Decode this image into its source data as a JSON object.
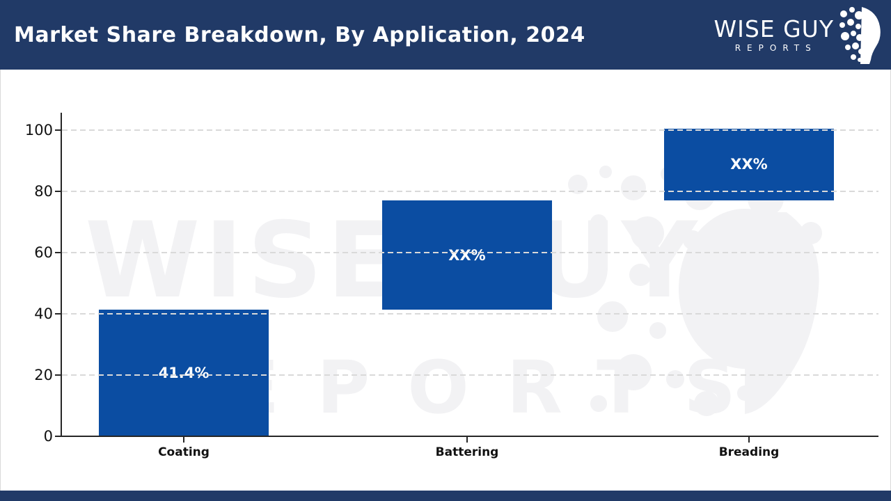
{
  "header": {
    "title": "Market Share Breakdown, By Application, 2024",
    "logo": {
      "line1": "WISE GUY",
      "line2": "REPORTS"
    }
  },
  "watermark": {
    "line1": "WISE GUY",
    "line2": "REPORTS"
  },
  "colors": {
    "header_bg": "#213a67",
    "bar": "#0b4da2",
    "bar_label": "#ffffff",
    "gridline": "#d9d9d9",
    "axis": "#262626",
    "watermark": "#f2f2f4"
  },
  "chart_data": {
    "type": "bar",
    "subtype": "waterfall",
    "title": "Market Share Breakdown, By Application, 2024",
    "categories": [
      "Coating",
      "Battering",
      "Breading"
    ],
    "bars": [
      {
        "category": "Coating",
        "start": 0,
        "end": 41.4,
        "label": "41.4%"
      },
      {
        "category": "Battering",
        "start": 41.4,
        "end": 77,
        "label": "XX%"
      },
      {
        "category": "Breading",
        "start": 77,
        "end": 100.5,
        "label": "XX%"
      }
    ],
    "yticks": [
      0,
      20,
      40,
      60,
      80,
      100
    ],
    "ylim": [
      0,
      105.7
    ],
    "xlabel": "",
    "ylabel": "",
    "grid": "horizontal-dashed",
    "legend": "none"
  }
}
